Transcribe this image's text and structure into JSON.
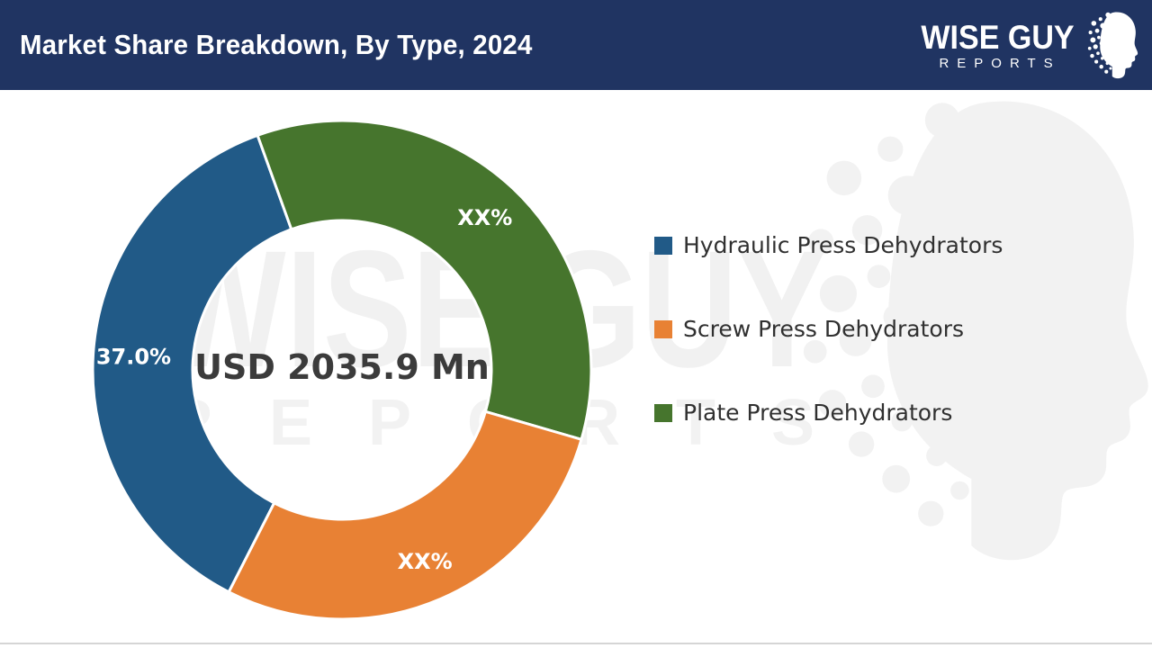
{
  "header": {
    "title": "Market Share Breakdown, By Type, 2024",
    "bg_color": "#203462",
    "logo": {
      "line1": "WISE GUY",
      "line2": "REPORTS"
    }
  },
  "watermark": {
    "line1": "WISE GUY",
    "line2": "REPORTS"
  },
  "chart_data": {
    "type": "pie",
    "subtype": "donut",
    "title": "Market Share Breakdown, By Type, 2024",
    "center_label": "USD 2035.9 Mn",
    "start_angle_deg": 207,
    "donut_hole_ratio": 0.6,
    "legend_position": "right",
    "segments": [
      {
        "name": "Hydraulic Press Dehydrators",
        "value": 37,
        "label": "37.0%",
        "color": "#215a87"
      },
      {
        "name": "Plate Press Dehydrators",
        "value": 35,
        "label": "XX%",
        "color": "#46752d"
      },
      {
        "name": "Screw Press Dehydrators",
        "value": 28,
        "label": "XX%",
        "color": "#e88134"
      }
    ],
    "legend": [
      {
        "label": "Hydraulic Press Dehydrators",
        "color": "#215a87"
      },
      {
        "label": "Screw Press Dehydrators",
        "color": "#e88134"
      },
      {
        "label": "Plate Press Dehydrators",
        "color": "#46752d"
      }
    ]
  }
}
